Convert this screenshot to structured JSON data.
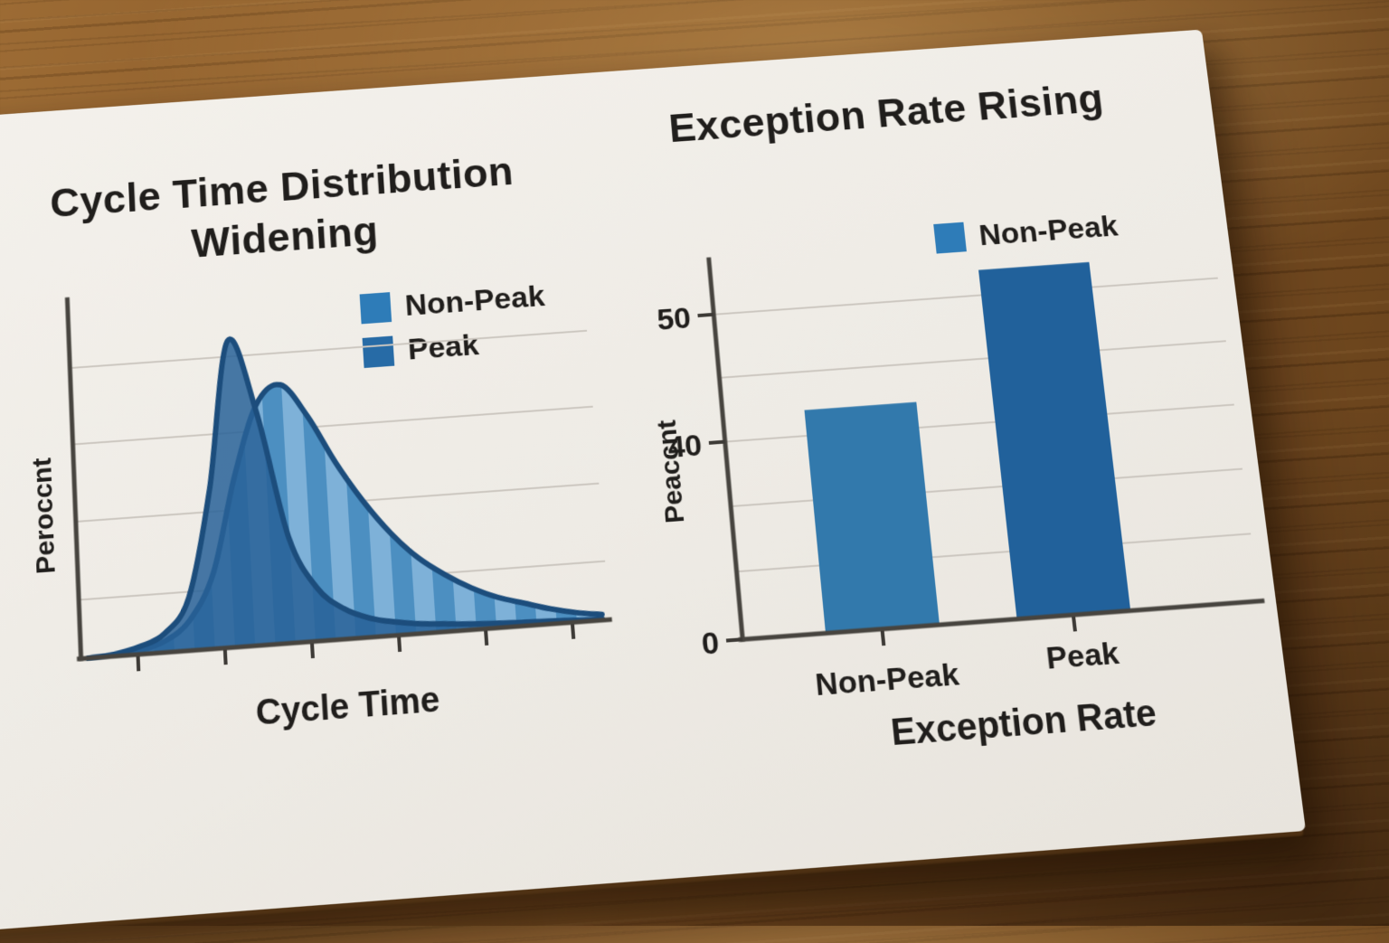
{
  "left_chart": {
    "title_line1": "Cycle Time Distribution",
    "title_line2": "Widening",
    "legend": [
      {
        "label": "Non-Peak",
        "color": "#2e7cb8"
      },
      {
        "label": "Peak",
        "color": "#276ba6"
      }
    ],
    "ylabel": "Peroccnt",
    "xlabel": "Cycle Time"
  },
  "right_chart": {
    "title": "Exception Rate Rising",
    "legend": [
      {
        "label": "Non-Peak",
        "color": "#2e7cb8"
      }
    ],
    "ylabel": "Peaccnt",
    "xlabel": "Exception Rate",
    "ytick_labels": [
      "50",
      "40",
      "0"
    ],
    "categories": [
      "Non-Peak",
      "Peak"
    ]
  },
  "chart_data": [
    {
      "type": "area",
      "title": "Cycle Time Distribution Widening",
      "xlabel": "Cycle Time",
      "ylabel": "Peroccnt",
      "legend": [
        "Non-Peak",
        "Peak"
      ],
      "legend_position": "top-right",
      "grid": true,
      "x_ticks_labeled": false,
      "y_ticks_labeled": false,
      "xlim": [
        0,
        10
      ],
      "ylim": [
        0,
        97
      ],
      "x": [
        0,
        0.5,
        1,
        1.5,
        2,
        2.5,
        3,
        3.5,
        4,
        4.5,
        5,
        5.5,
        6,
        6.5,
        7,
        7.5,
        8,
        8.5,
        9,
        9.5,
        10
      ],
      "series": [
        {
          "name": "Non-Peak",
          "style": "narrow density, peaks earlier, solid blue fill, navy outline",
          "values": [
            0,
            0.5,
            2,
            5,
            14,
            42,
            82,
            62,
            28,
            14,
            8,
            5,
            3.5,
            2.5,
            2,
            1.5,
            1.2,
            1,
            0.8,
            0.5,
            0.3
          ]
        },
        {
          "name": "Peak",
          "style": "wider density, shifted right with long tail, striped blue fill, navy outline",
          "values": [
            0,
            0.3,
            1,
            3,
            8,
            20,
            45,
            64,
            69,
            60,
            47,
            36,
            27,
            20,
            15,
            11,
            8,
            6,
            4,
            2.5,
            1.5
          ]
        }
      ]
    },
    {
      "type": "bar",
      "title": "Exception Rate Rising",
      "xlabel": "Exception Rate",
      "ylabel": "Peaccnt",
      "categories": [
        "Non-Peak",
        "Peak"
      ],
      "values": [
        42,
        52
      ],
      "yticks_as_printed": [
        0,
        40,
        50
      ],
      "axis_note": "printed ticks 0, 40, 50 are evenly spaced (non-linear axis as shown)",
      "grid": true,
      "legend": [
        "Non-Peak"
      ],
      "legend_position": "top",
      "bar_colors": [
        "#3279ac",
        "#21619b"
      ]
    }
  ],
  "colors": {
    "card_background": "#efece6",
    "axis": "#47443f",
    "gridline": "#ccc7c0",
    "curve_outline_navy": "#1c4d7c",
    "nonpeak_curve_fill": "rgba(40,97,152,0.85)",
    "peak_stripe_dark": "#4c8fc1",
    "peak_stripe_light": "#7eb1d8",
    "bar_nonpeak": "#3279ac",
    "bar_peak": "#21619b",
    "text": "#201e1c",
    "wood": "#8b5b29"
  }
}
